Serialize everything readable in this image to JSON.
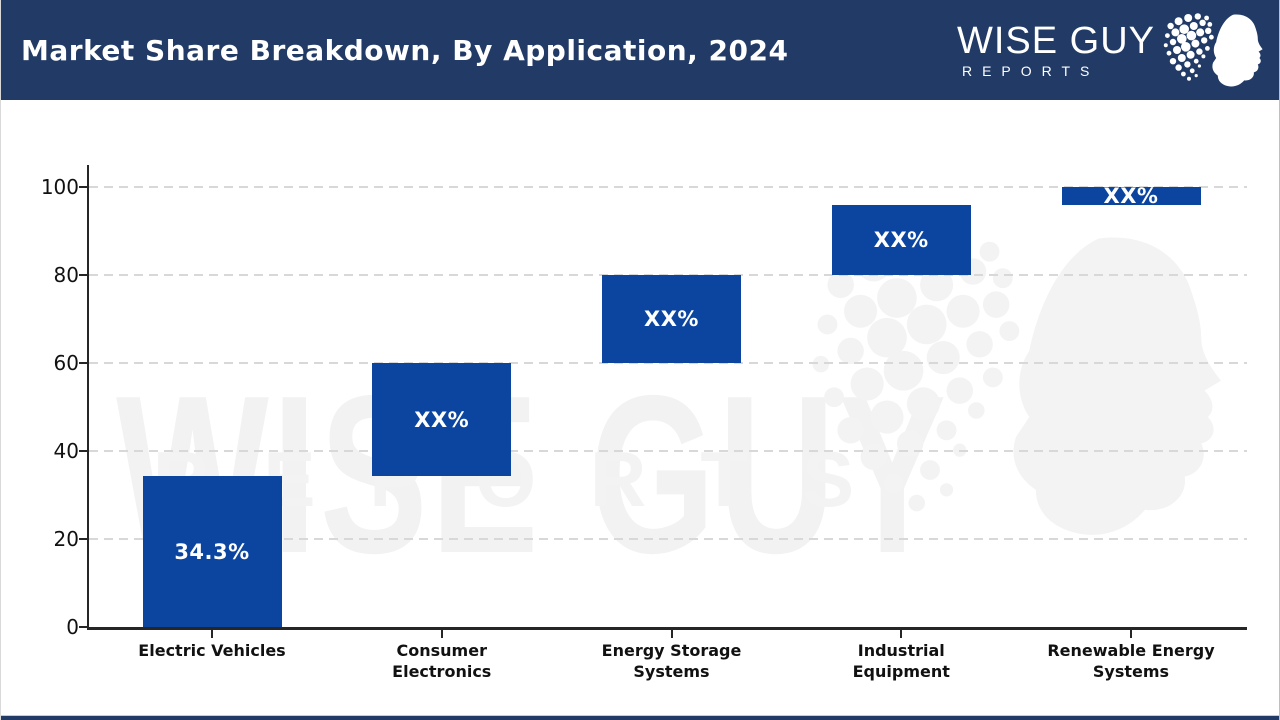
{
  "header": {
    "title": "Market Share Breakdown, By Application, 2024",
    "logo": {
      "line1": "WISE GUY",
      "line2": "REPORTS"
    }
  },
  "watermark": {
    "line1": "WISE GUY",
    "line2": "REPORTS"
  },
  "chart_data": {
    "type": "bar",
    "subtype": "waterfall",
    "title": "Market Share Breakdown, By Application, 2024",
    "categories": [
      "Electric Vehicles",
      "Consumer Electronics",
      "Energy Storage Systems",
      "Industrial Equipment",
      "Renewable Energy Systems"
    ],
    "category_lines": [
      [
        "Electric Vehicles"
      ],
      [
        "Consumer",
        "Electronics"
      ],
      [
        "Energy Storage",
        "Systems"
      ],
      [
        "Industrial",
        "Equipment"
      ],
      [
        "Renewable Energy",
        "Systems"
      ]
    ],
    "series": [
      {
        "name": "Market Share",
        "segments": [
          {
            "start": 0,
            "end": 34.3
          },
          {
            "start": 34.3,
            "end": 60
          },
          {
            "start": 60,
            "end": 80
          },
          {
            "start": 80,
            "end": 96
          },
          {
            "start": 96,
            "end": 100
          }
        ]
      }
    ],
    "values_pct": [
      34.3,
      25.7,
      20,
      16,
      4
    ],
    "bar_labels": [
      "34.3%",
      "XX%",
      "XX%",
      "XX%",
      "XX%"
    ],
    "xlabel": "",
    "ylabel": "",
    "ylim": [
      0,
      105
    ],
    "yticks": [
      0,
      20,
      40,
      60,
      80,
      100
    ],
    "grid": "horizontal-dashed",
    "legend": "none",
    "bar_color": "#0b45a0",
    "bar_label_color": "#ffffff"
  },
  "colors": {
    "header_bg": "#213a66",
    "footer_bg": "#213a66",
    "bar": "#0b45a0",
    "grid": "#d8d8d8",
    "axis": "#262626",
    "watermark": "#f2f2f2"
  }
}
